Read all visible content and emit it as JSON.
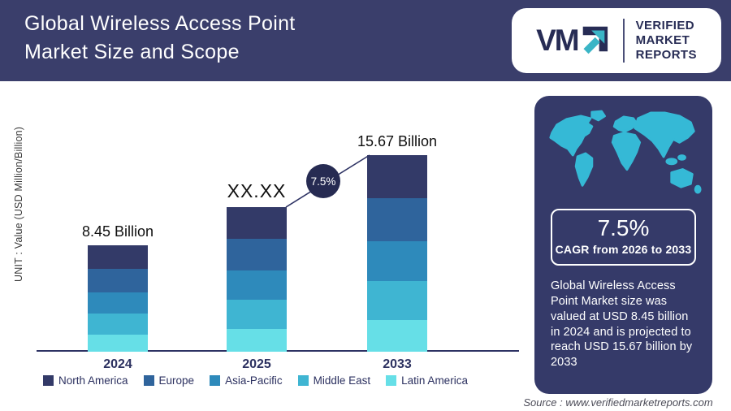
{
  "header": {
    "title_line1": "Global Wireless Access Point",
    "title_line2": "Market Size and Scope",
    "logo": {
      "mark": "VM",
      "brand_line1": "VERIFIED",
      "brand_line2": "MARKET",
      "brand_line3": "REPORTS"
    }
  },
  "chart_data": {
    "type": "bar",
    "stacked": true,
    "categories": [
      "2024",
      "2025",
      "2033"
    ],
    "bar_value_labels": [
      "8.45 Billion",
      "XX.XX",
      "15.67 Billion"
    ],
    "values_est_billion": [
      8.45,
      11.5,
      15.67
    ],
    "segment_fractions": [
      0.22,
      0.22,
      0.2,
      0.2,
      0.16
    ],
    "series": [
      {
        "name": "North America",
        "color": "#333a68"
      },
      {
        "name": "Europe",
        "color": "#2f649c"
      },
      {
        "name": "Asia-Pacific",
        "color": "#2e8abb"
      },
      {
        "name": "Middle East",
        "color": "#3fb5d2"
      },
      {
        "name": "Latin America",
        "color": "#66dfe7"
      }
    ],
    "growth_label": "7.5%",
    "title": "Global Wireless Access Point Market Size and Scope",
    "xlabel": "",
    "ylabel": "UNIT : Value (USD Million/Billion)",
    "grid": false,
    "legend_position": "bottom"
  },
  "sidebar": {
    "cagr_value": "7.5%",
    "cagr_caption": "CAGR from 2026 to 2033",
    "description": "Global Wireless Access Point Market size was valued at USD 8.45 billion in 2024 and is projected to reach USD 15.67 billion by 2033"
  },
  "source": "Source : www.verifiedmarketreports.com",
  "colors": {
    "header_bg": "#3a3e6b",
    "sidebar_bg": "#353a69",
    "logo_navy": "#272c55",
    "accent_teal": "#35b9d6",
    "circle_bg": "#262b52",
    "axis": "#2d3263"
  }
}
